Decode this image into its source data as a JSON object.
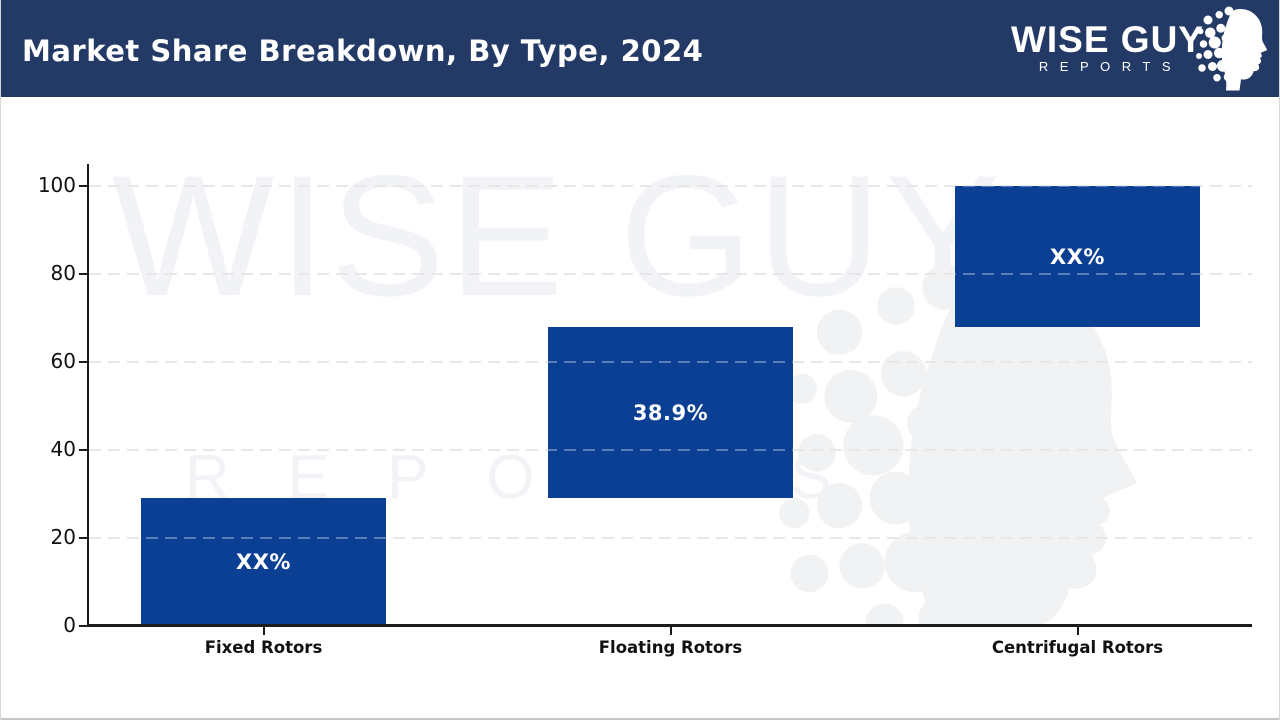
{
  "header": {
    "title": "Market Share Breakdown, By Type, 2024",
    "bg_color": "#243a66"
  },
  "logo": {
    "line1": "WISE GUY",
    "line2": "REPORTS"
  },
  "watermark": {
    "line1": "WISE GUY",
    "line2": "REPORTS"
  },
  "chart_data": {
    "type": "bar",
    "subtype": "waterfall-floating-bars",
    "title": "Market Share Breakdown, By Type, 2024",
    "categories": [
      "Fixed Rotors",
      "Floating Rotors",
      "Centrifugal Rotors"
    ],
    "segments": [
      {
        "category": "Fixed Rotors",
        "start": 0,
        "end": 29.0,
        "value": 29.0,
        "label": "XX%"
      },
      {
        "category": "Floating Rotors",
        "start": 29.0,
        "end": 67.9,
        "value": 38.9,
        "label": "38.9%"
      },
      {
        "category": "Centrifugal Rotors",
        "start": 67.9,
        "end": 100,
        "value": 32.1,
        "label": "XX%"
      }
    ],
    "bar_labels": [
      "XX%",
      "38.9%",
      "XX%"
    ],
    "yticks": [
      0,
      20,
      40,
      60,
      80,
      100
    ],
    "ylim": [
      0,
      105
    ],
    "xlabel": "",
    "ylabel": "",
    "grid": "horizontal dashed",
    "legend": "none",
    "bar_color": "#0a3f94",
    "grid_color": "#dcdcdc",
    "axis_color": "#1c1c1c"
  }
}
